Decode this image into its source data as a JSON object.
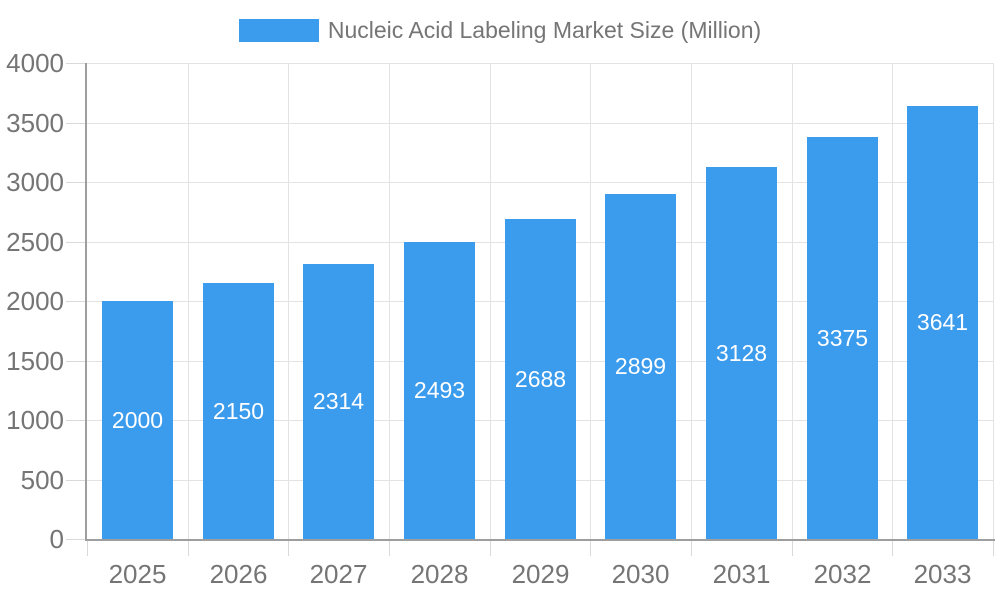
{
  "chart_data": {
    "type": "bar",
    "title": "Nucleic Acid Labeling Market Size (Million)",
    "categories": [
      "2025",
      "2026",
      "2027",
      "2028",
      "2029",
      "2030",
      "2031",
      "2032",
      "2033"
    ],
    "values": [
      2000,
      2150,
      2314,
      2493,
      2688,
      2899,
      3128,
      3375,
      3641
    ],
    "xlabel": "",
    "ylabel": "",
    "ylim": [
      0,
      4000
    ],
    "ytick_step": 500,
    "ytick_labels": [
      "0",
      "500",
      "1000",
      "1500",
      "2000",
      "2500",
      "3000",
      "3500",
      "4000"
    ],
    "grid": "on",
    "legend_position": "top-center",
    "bar_labels_position": "centered-inside",
    "colors": {
      "bar": "#3b9bec",
      "bar_value_text": "#ffffff",
      "axis_text": "#757575",
      "gridline": "#e3e3e3",
      "tick": "#d9d9d9",
      "axis_line": "#9e9e9e",
      "background": "#ffffff"
    }
  }
}
